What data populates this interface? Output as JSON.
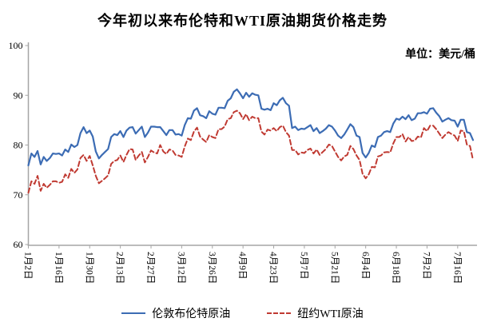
{
  "title": "今年初以来布伦特和WTI原油期货价格走势",
  "unit_label": "单位：美元/桶",
  "colors": {
    "brent_line": "#3c6cb4",
    "wti_line": "#c03a32",
    "axis": "#a6a6a6",
    "text": "#000000",
    "background": "#ffffff"
  },
  "legend": {
    "brent": "伦敦布伦特原油",
    "wti": "纽约WTI原油"
  },
  "chart_data": {
    "type": "line",
    "title": "今年初以来布伦特和WTI原油期货价格走势",
    "unit": "美元/桶",
    "ylim": [
      60,
      100
    ],
    "y_ticks": [
      100,
      90,
      80,
      70,
      60
    ],
    "x_tick_labels": [
      "1月2日",
      "1月16日",
      "1月30日",
      "2月13日",
      "2月27日",
      "3月12日",
      "3月26日",
      "4月9日",
      "4月23日",
      "5月7日",
      "5月21日",
      "6月4日",
      "6月18日",
      "7月2日",
      "7月16日"
    ],
    "x_tick_interval": 10,
    "n_points": 146,
    "grid": false,
    "legend_position": "bottom",
    "series": [
      {
        "name": "伦敦布伦特原油",
        "color": "#3c6cb4",
        "style": "solid",
        "values": [
          75.9,
          78.3,
          77.6,
          78.8,
          76.1,
          77.6,
          76.8,
          77.4,
          78.3,
          78.2,
          78.3,
          77.9,
          79.1,
          78.6,
          80.1,
          79.6,
          80.0,
          82.4,
          83.6,
          82.4,
          82.9,
          81.7,
          78.7,
          77.3,
          78.0,
          78.6,
          79.2,
          81.6,
          82.2,
          82.0,
          82.8,
          81.6,
          82.9,
          83.5,
          83.6,
          82.3,
          83.0,
          83.7,
          81.6,
          82.5,
          83.7,
          83.7,
          83.6,
          83.6,
          82.8,
          82.0,
          83.0,
          83.0,
          82.1,
          82.2,
          81.9,
          84.0,
          85.4,
          85.3,
          86.9,
          87.4,
          86.0,
          85.8,
          85.4,
          86.8,
          86.3,
          86.1,
          87.5,
          87.5,
          87.4,
          88.9,
          89.4,
          90.7,
          91.2,
          90.4,
          89.4,
          90.5,
          89.7,
          90.4,
          90.1,
          90.0,
          87.3,
          87.1,
          87.3,
          87.0,
          88.4,
          88.0,
          89.0,
          89.5,
          88.4,
          87.9,
          83.4,
          83.7,
          83.0,
          83.3,
          83.2,
          83.6,
          84.0,
          82.8,
          83.4,
          82.4,
          82.8,
          83.3,
          84.0,
          83.7,
          82.9,
          81.9,
          81.4,
          82.1,
          83.1,
          84.2,
          83.6,
          81.9,
          81.6,
          78.4,
          77.5,
          78.4,
          79.9,
          79.6,
          81.6,
          81.9,
          82.6,
          82.8,
          82.6,
          84.3,
          85.3,
          85.1,
          85.7,
          85.2,
          86.0,
          85.0,
          85.3,
          86.4,
          86.4,
          86.6,
          86.3,
          87.3,
          87.4,
          86.5,
          85.8,
          84.7,
          85.1,
          85.4,
          85.0,
          84.9,
          83.7,
          85.1,
          85.1,
          82.6,
          82.4,
          81.0
        ]
      },
      {
        "name": "纽约WTI原油",
        "color": "#c03a32",
        "style": "dashed",
        "values": [
          70.4,
          72.7,
          72.2,
          73.8,
          70.8,
          72.2,
          71.4,
          72.0,
          72.7,
          72.7,
          72.4,
          72.6,
          74.1,
          73.4,
          75.2,
          74.4,
          75.1,
          77.4,
          78.0,
          76.8,
          77.8,
          75.9,
          73.8,
          72.3,
          72.8,
          73.3,
          73.9,
          76.2,
          76.8,
          77.0,
          77.9,
          76.6,
          78.0,
          79.2,
          79.1,
          77.0,
          77.9,
          78.6,
          76.5,
          77.6,
          78.9,
          78.5,
          78.3,
          80.0,
          78.7,
          78.2,
          79.1,
          78.9,
          78.0,
          77.9,
          77.6,
          79.7,
          81.3,
          81.0,
          82.7,
          83.5,
          81.7,
          81.1,
          80.6,
          82.0,
          81.6,
          81.4,
          83.2,
          83.2,
          83.7,
          85.2,
          85.4,
          86.6,
          86.9,
          86.4,
          85.2,
          86.2,
          85.0,
          85.7,
          85.4,
          85.4,
          82.7,
          82.1,
          83.1,
          82.9,
          83.4,
          82.8,
          83.6,
          83.9,
          82.6,
          81.9,
          79.0,
          79.0,
          78.1,
          78.5,
          78.4,
          79.0,
          79.3,
          78.3,
          79.1,
          78.0,
          78.6,
          79.2,
          80.1,
          79.8,
          78.7,
          77.6,
          76.9,
          77.7,
          78.0,
          79.8,
          79.2,
          77.9,
          77.0,
          74.2,
          73.3,
          74.1,
          75.6,
          75.5,
          77.7,
          77.9,
          78.5,
          78.6,
          78.5,
          80.3,
          81.6,
          81.6,
          82.2,
          80.7,
          81.6,
          80.8,
          80.9,
          81.7,
          81.5,
          83.4,
          82.8,
          83.9,
          83.9,
          83.2,
          82.3,
          81.4,
          82.1,
          82.6,
          82.2,
          81.9,
          80.8,
          82.9,
          82.8,
          80.1,
          79.8,
          77.0
        ]
      }
    ]
  }
}
